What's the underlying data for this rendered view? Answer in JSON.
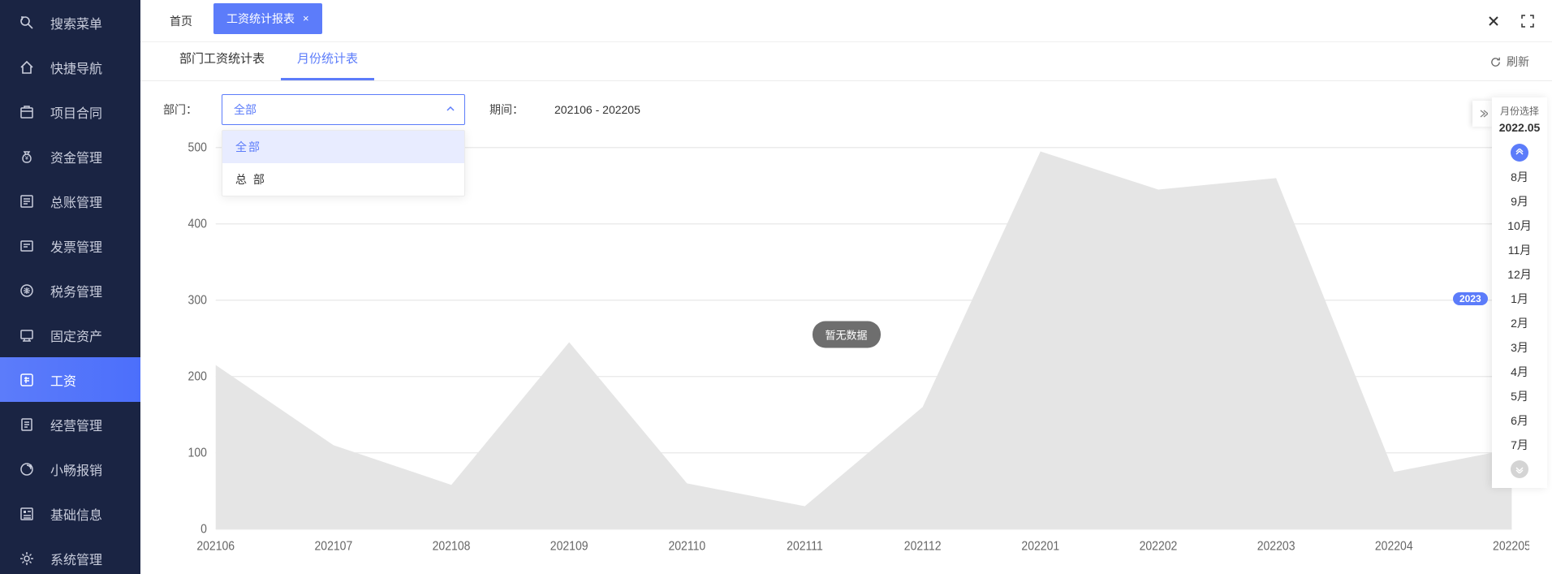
{
  "sidebar": {
    "items": [
      {
        "icon": "search",
        "label": "搜索菜单"
      },
      {
        "icon": "home",
        "label": "快捷导航"
      },
      {
        "icon": "folder",
        "label": "项目合同"
      },
      {
        "icon": "moneybag",
        "label": "资金管理"
      },
      {
        "icon": "ledger",
        "label": "总账管理"
      },
      {
        "icon": "invoice",
        "label": "发票管理"
      },
      {
        "icon": "tax",
        "label": "税务管理"
      },
      {
        "icon": "asset",
        "label": "固定资产"
      },
      {
        "icon": "salary",
        "label": "工资"
      },
      {
        "icon": "ops",
        "label": "经营管理"
      },
      {
        "icon": "reimburse",
        "label": "小畅报销"
      },
      {
        "icon": "base",
        "label": "基础信息"
      },
      {
        "icon": "system",
        "label": "系统管理"
      }
    ],
    "active_index": 8
  },
  "tabs": {
    "home_label": "首页",
    "active_label": "工资统计报表",
    "close_glyph": "×"
  },
  "subtabs": {
    "items": [
      {
        "label": "部门工资统计表",
        "active": false
      },
      {
        "label": "月份统计表",
        "active": true
      }
    ],
    "refresh_label": "刷新"
  },
  "filters": {
    "dept_label": "部门：",
    "dept_selected": "全部",
    "dept_options": [
      "全部",
      "总 部"
    ],
    "period_label": "期间：",
    "period_value": "202106 - 202205"
  },
  "chart": {
    "type": "area",
    "no_data_label": "暂无数据",
    "ylim": [
      0,
      500
    ],
    "ytick_step": 100,
    "yticks": [
      0,
      100,
      200,
      300,
      400,
      500
    ],
    "x_categories": [
      "202106",
      "202107",
      "202108",
      "202109",
      "202110",
      "202111",
      "202112",
      "202201",
      "202202",
      "202203",
      "202204",
      "202205"
    ],
    "values": [
      215,
      110,
      58,
      245,
      60,
      30,
      160,
      495,
      445,
      460,
      75,
      105
    ],
    "area_fill": "#e5e5e5",
    "grid_color": "#e8e8e8",
    "axis_text_color": "#666666",
    "axis_fontsize": 13,
    "background_color": "#ffffff"
  },
  "month_panel": {
    "title": "月份选择",
    "current": "2022.05",
    "year_badge": "2023",
    "months": [
      "8月",
      "9月",
      "10月",
      "11月",
      "12月",
      "1月",
      "2月",
      "3月",
      "4月",
      "5月",
      "6月",
      "7月"
    ],
    "year_badge_before_index": 5
  }
}
